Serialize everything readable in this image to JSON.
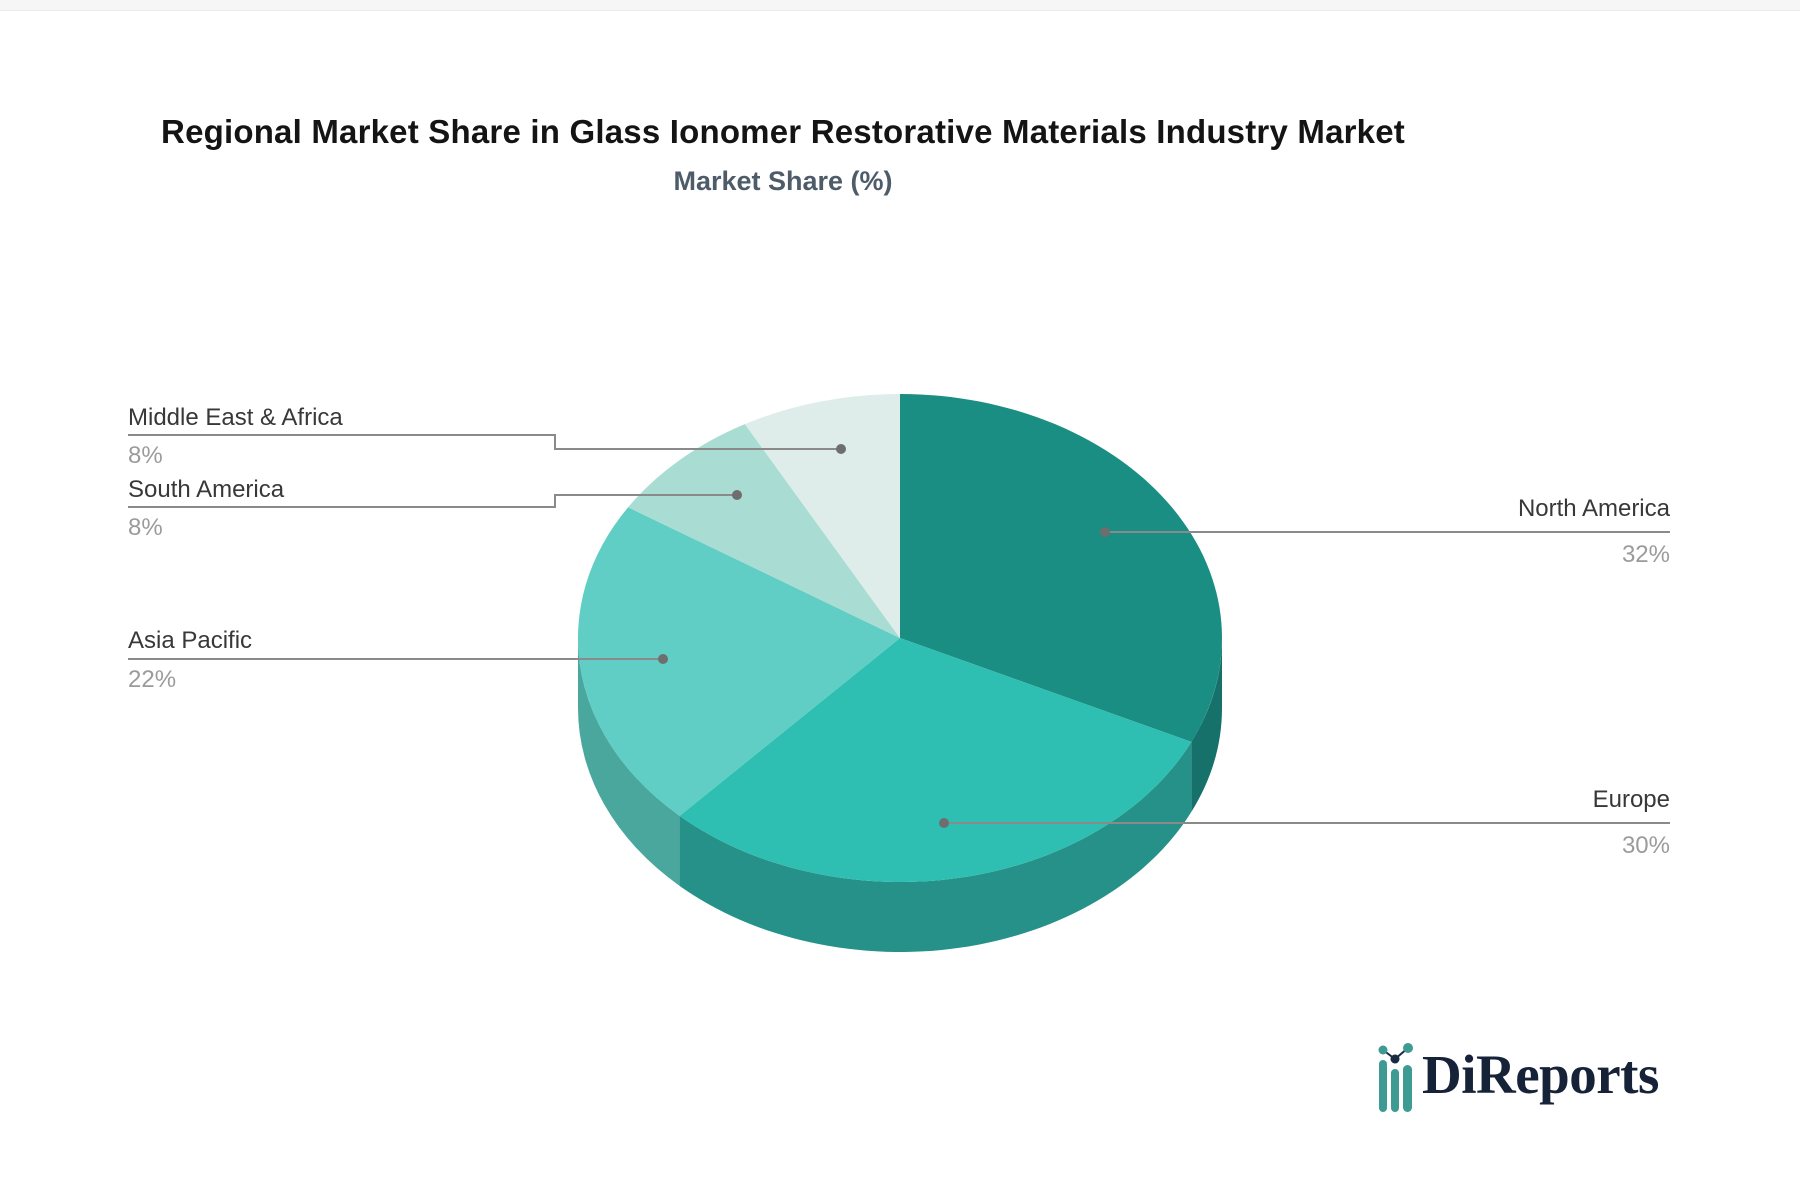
{
  "header": {
    "title": "Regional Market Share in Glass Ionomer Restorative Materials Industry Market",
    "subtitle": "Market Share (%)"
  },
  "chart_data": {
    "type": "pie",
    "title": "Regional Market Share in Glass Ionomer Restorative Materials Industry Market",
    "subtitle": "Market Share (%)",
    "unit": "%",
    "effect": "3d-depth",
    "start_angle": "12-o-clock",
    "direction": "clockwise",
    "labels": [
      "North America",
      "Europe",
      "Asia Pacific",
      "South America",
      "Middle East & Africa"
    ],
    "values": [
      32,
      30,
      22,
      8,
      8
    ],
    "pct_labels": [
      "32%",
      "30%",
      "22%",
      "8%",
      "8%"
    ],
    "colors_top": [
      "#1a8e83",
      "#2ebfb2",
      "#60cec4",
      "#a9dcd3",
      "#deede9"
    ],
    "colors_side": [
      "#157169",
      "#259189",
      "#4aa79e",
      "#8fc9c0",
      "#c4dfd9"
    ],
    "legend_position": "callout-labels",
    "callout_line_color": "#8a8a8a",
    "callout_dot_color": "#6e6e6e"
  },
  "logo": {
    "text": "DiReports",
    "icon": "mini-bar-line-chart-icon",
    "icon_bar_color": "#3d9b93",
    "text_color": "#152238",
    "icon_dot_dark_color": "#1b2a44"
  }
}
